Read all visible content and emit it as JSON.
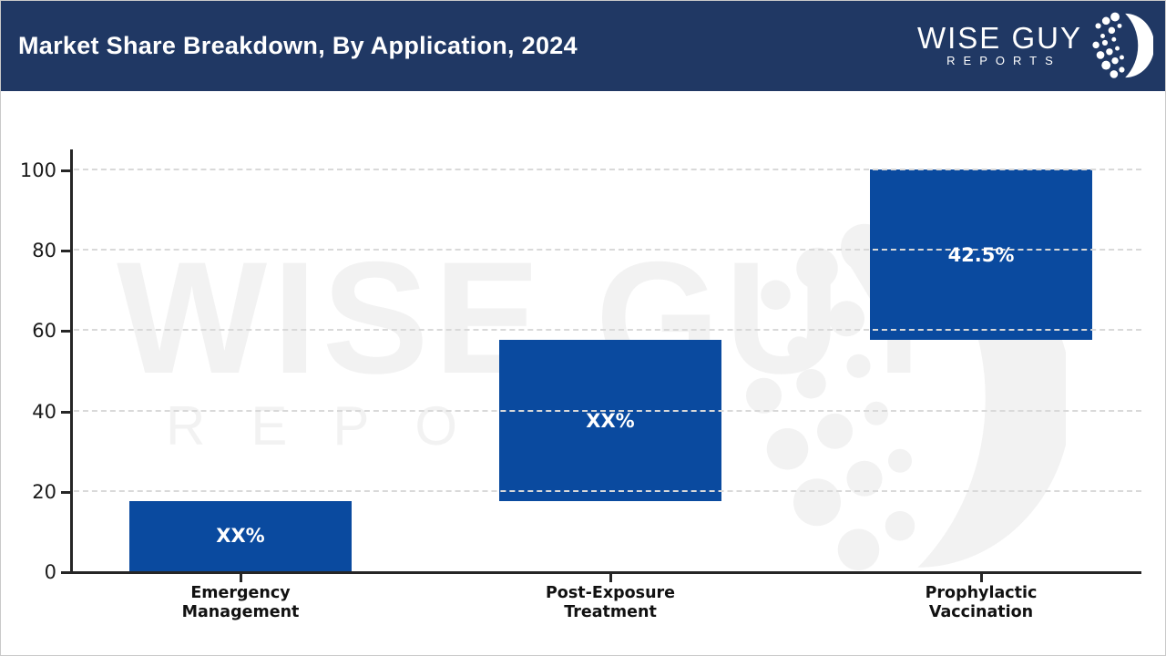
{
  "header": {
    "title": "Market Share Breakdown, By Application, 2024",
    "logo": {
      "line1": "WISE GUY",
      "line2": "REPORTS"
    }
  },
  "watermark": {
    "line1": "WISE GUY",
    "line2": "REPORTS"
  },
  "colors": {
    "header_bg": "#203864",
    "bar": "#0a4a9f",
    "axis": "#262626",
    "grid": "#d9d9d9",
    "watermark": "#f2f2f2",
    "bar_label": "#ffffff",
    "tick_text": "#1a1a1a"
  },
  "chart_data": {
    "type": "bar",
    "subtype": "stacked-progression (each bar floats, starting where the previous one ends)",
    "title": "Market Share Breakdown, By Application, 2024",
    "categories": [
      "Emergency Management",
      "Post-Exposure Treatment",
      "Prophylactic Vaccination"
    ],
    "category_lines": [
      [
        "Emergency",
        "Management"
      ],
      [
        "Post-Exposure",
        "Treatment"
      ],
      [
        "Prophylactic",
        "Vaccination"
      ]
    ],
    "segments": [
      {
        "category": "Emergency Management",
        "start": 0,
        "end": 17.5,
        "value": 17.5,
        "label": "XX%"
      },
      {
        "category": "Post-Exposure Treatment",
        "start": 17.5,
        "end": 57.5,
        "value": 40,
        "label": "XX%"
      },
      {
        "category": "Prophylactic Vaccination",
        "start": 57.5,
        "end": 100,
        "value": 42.5,
        "label": "42.5%"
      }
    ],
    "xlabel": "",
    "ylabel": "",
    "ylim": [
      0,
      105
    ],
    "yticks": [
      0,
      20,
      40,
      60,
      80,
      100
    ],
    "grid": "horizontal dashed gridlines, drawn over the bars",
    "legend": "none",
    "note": "segment start/end values estimated from axis; XX% labels are redacted values as shown"
  }
}
